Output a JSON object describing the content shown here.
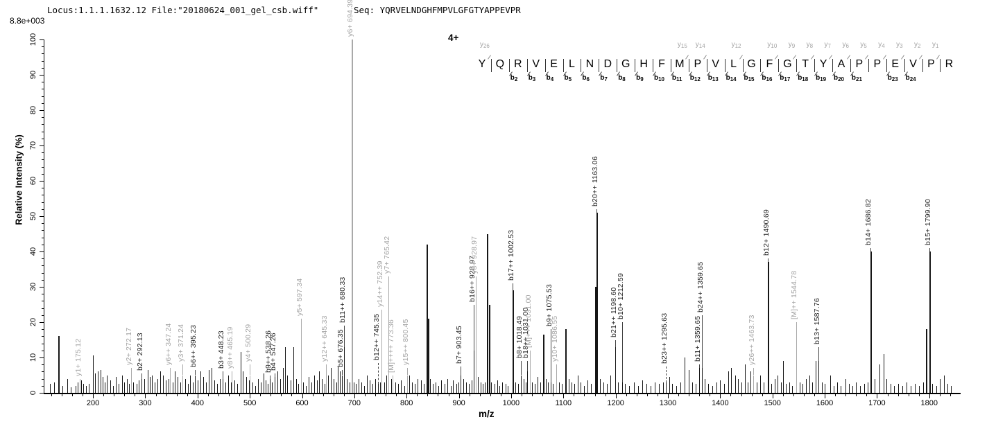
{
  "header": {
    "locus": "Locus:1.1.1.1632.12 File:\"20180624_001_gel_csb.wiff\"",
    "seq": "Seq: YQRVELNDGHFMPVLGFGTYAPPEVPR"
  },
  "y_axis": {
    "label": "Relative  Intensity (%)",
    "max_intensity": "8.8e+003",
    "ticks": [
      0,
      10,
      20,
      30,
      40,
      50,
      60,
      70,
      80,
      90,
      100
    ]
  },
  "x_axis": {
    "label": "m/z",
    "ticks": [
      200,
      300,
      400,
      500,
      600,
      700,
      800,
      900,
      1000,
      1100,
      1200,
      1300,
      1400,
      1500,
      1600,
      1700,
      1800
    ]
  },
  "annotation": {
    "charge": "4+",
    "sequence": "YQRVELNDGHFMPVLGFGTYAPPEVPR",
    "y_ions": [
      {
        "gap": 1,
        "label": "y26"
      },
      {
        "gap": 12,
        "label": "y15"
      },
      {
        "gap": 13,
        "label": "y14"
      },
      {
        "gap": 15,
        "label": "y12"
      },
      {
        "gap": 17,
        "label": "y10"
      },
      {
        "gap": 18,
        "label": "y9"
      },
      {
        "gap": 19,
        "label": "y8"
      },
      {
        "gap": 20,
        "label": "y7"
      },
      {
        "gap": 21,
        "label": "y6"
      },
      {
        "gap": 22,
        "label": "y5"
      },
      {
        "gap": 23,
        "label": "y4"
      },
      {
        "gap": 24,
        "label": "y3"
      },
      {
        "gap": 25,
        "label": "y2"
      },
      {
        "gap": 26,
        "label": "y1"
      }
    ],
    "b_ions": [
      {
        "gap": 2,
        "label": "b2"
      },
      {
        "gap": 3,
        "label": "b3"
      },
      {
        "gap": 4,
        "label": "b4"
      },
      {
        "gap": 5,
        "label": "b5"
      },
      {
        "gap": 6,
        "label": "b6"
      },
      {
        "gap": 7,
        "label": "b7"
      },
      {
        "gap": 8,
        "label": "b8"
      },
      {
        "gap": 9,
        "label": "b9"
      },
      {
        "gap": 10,
        "label": "b10"
      },
      {
        "gap": 11,
        "label": "b11"
      },
      {
        "gap": 12,
        "label": "b12"
      },
      {
        "gap": 13,
        "label": "b13"
      },
      {
        "gap": 14,
        "label": "b14"
      },
      {
        "gap": 15,
        "label": "b15"
      },
      {
        "gap": 16,
        "label": "b16"
      },
      {
        "gap": 17,
        "label": "b17"
      },
      {
        "gap": 18,
        "label": "b18"
      },
      {
        "gap": 19,
        "label": "b19"
      },
      {
        "gap": 20,
        "label": "b20"
      },
      {
        "gap": 21,
        "label": "b21"
      },
      {
        "gap": 23,
        "label": "b23"
      },
      {
        "gap": 24,
        "label": "b24"
      }
    ]
  },
  "chart_data": {
    "type": "bar",
    "subtype": "ms2-stick-spectrum",
    "xlabel": "m/z",
    "ylabel": "Relative  Intensity (%)",
    "x_range": [
      105,
      1860
    ],
    "y_range": [
      0,
      100
    ],
    "base_peak_intensity": "8.8e+003",
    "colors": {
      "y_ion_label": "#a4a4a4",
      "b_ion_label": "#1f1f1f",
      "peak": "#161616"
    },
    "labeled_peaks": [
      {
        "ion": "y1+",
        "mz": "175.12",
        "h": 3,
        "lift": 1,
        "s": "y"
      },
      {
        "ion": "y2+",
        "mz": "272.17",
        "h": 4,
        "lift": 3,
        "s": "y"
      },
      {
        "ion": "b2+",
        "mz": "292.13",
        "h": 4,
        "lift": 1.5,
        "s": "b"
      },
      {
        "ion": "y6++",
        "mz": "347.24",
        "h": 4,
        "lift": 3,
        "s": "y"
      },
      {
        "ion": "y3+",
        "mz": "371.24",
        "h": 5,
        "lift": 3,
        "s": "y"
      },
      {
        "ion": "b6++",
        "mz": "395.23",
        "h": 5,
        "lift": 1.5,
        "s": "b"
      },
      {
        "ion": "b3+",
        "mz": "448.23",
        "h": 4,
        "lift": 2,
        "s": "b"
      },
      {
        "ion": "y8++",
        "mz": "465.19",
        "h": 4,
        "lift": 2,
        "s": "y"
      },
      {
        "ion": "y4+",
        "mz": "500.29",
        "h": 5,
        "lift": 3,
        "s": "y"
      },
      {
        "ion": "b9++",
        "mz": "538.26",
        "h": 4,
        "lift": 1,
        "s": "b"
      },
      {
        "ion": "b4+",
        "mz": "547.26",
        "h": 4.5,
        "lift": 1,
        "s": "b"
      },
      {
        "ion": "y5+",
        "mz": "597.34",
        "h": 2,
        "lift": 19,
        "s": "y"
      },
      {
        "ion": "y12++",
        "mz": "645.33",
        "h": 3,
        "lift": 5,
        "s": "y"
      },
      {
        "ion": "b5+",
        "mz": "676.35",
        "h": 5,
        "lift": 1.5,
        "s": "b"
      },
      {
        "ion": "b11++",
        "mz": "680.33",
        "h": 13,
        "lift": 6,
        "s": "b"
      },
      {
        "ion": "y6+",
        "mz": "694.39",
        "h": 100,
        "lift": -14,
        "s": "y"
      },
      {
        "ion": "b12++",
        "mz": "745.35",
        "h": 2.5,
        "lift": 6,
        "s": "b",
        "dashed": true
      },
      {
        "ion": "y14++",
        "mz": "752.39",
        "h": 6.5,
        "lift": 17,
        "s": "y"
      },
      {
        "ion": "y7+",
        "mz": "765.42",
        "h": 7,
        "lift": 26,
        "s": "y"
      },
      {
        "ion": "[M]++++",
        "mz": "773.36",
        "h": 3,
        "lift": 2,
        "s": "y"
      },
      {
        "ion": "y15++",
        "mz": "800.45",
        "h": 5,
        "lift": 2,
        "s": "y"
      },
      {
        "ion": "b7+",
        "mz": "903.45",
        "h": 5,
        "lift": 2.5,
        "s": "b"
      },
      {
        "ion": "b16++",
        "mz": "928.97",
        "h": 12,
        "lift": 13,
        "s": "b"
      },
      {
        "ion": "y8+",
        "mz": "928.97",
        "x": 932.5,
        "h": 12,
        "lift": 21,
        "s": "y"
      },
      {
        "ion": "b17++",
        "mz": "1002.53",
        "h": 29,
        "lift": 2,
        "s": "b"
      },
      {
        "ion": "b8+",
        "mz": "1018.49",
        "h": 5,
        "lift": 4,
        "s": "b"
      },
      {
        "ion": "b18++",
        "mz": "1031.00",
        "h": 6,
        "lift": 3,
        "s": "b"
      },
      {
        "ion": "[M]+++",
        "mz": "1031.00",
        "x": 1036,
        "h": 6,
        "lift": 6,
        "s": "y"
      },
      {
        "ion": "b9+",
        "mz": "1075.53",
        "h": 3,
        "lift": 15,
        "s": "b"
      },
      {
        "ion": "y10+",
        "mz": "1086.55",
        "h": 3,
        "lift": 5,
        "s": "y"
      },
      {
        "ion": "b20++",
        "mz": "1163.06",
        "h": 51,
        "lift": 1,
        "s": "b"
      },
      {
        "ion": "b21++",
        "mz": "1198.60",
        "h": 13,
        "lift": 2,
        "s": "b"
      },
      {
        "ion": "b10+",
        "mz": "1212.59",
        "h": 3,
        "lift": 17,
        "s": "b"
      },
      {
        "ion": "b23++",
        "mz": "1295.63",
        "h": 3,
        "lift": 4.5,
        "s": "b",
        "dashed": true
      },
      {
        "ion": "b11+",
        "mz": "1359.65",
        "h": 7,
        "lift": 1,
        "s": "b"
      },
      {
        "ion": "b24++",
        "mz": "1359.65",
        "x": 1365,
        "h": 7,
        "lift": 15,
        "s": "b"
      },
      {
        "ion": "y26++",
        "mz": "1463.73",
        "h": 5,
        "lift": 2,
        "s": "y"
      },
      {
        "ion": "b12+",
        "mz": "1490.69",
        "h": 37,
        "lift": 1,
        "s": "b"
      },
      {
        "ion": "[M]++",
        "mz": "1544.78",
        "h": 5,
        "lift": 15,
        "s": "y"
      },
      {
        "ion": "b13+",
        "mz": "1587.76",
        "h": 9,
        "lift": 4,
        "s": "b"
      },
      {
        "ion": "b14+",
        "mz": "1686.82",
        "h": 40,
        "lift": 1,
        "s": "b"
      },
      {
        "ion": "b15+",
        "mz": "1799.90",
        "h": 40,
        "lift": 1,
        "s": "b"
      }
    ],
    "background_peaks": [
      [
        118,
        2.5
      ],
      [
        126,
        3
      ],
      [
        133,
        16
      ],
      [
        142,
        2
      ],
      [
        151,
        4
      ],
      [
        158,
        1.5
      ],
      [
        166,
        2
      ],
      [
        171,
        3
      ],
      [
        177,
        3.5
      ],
      [
        181,
        2.5
      ],
      [
        186,
        2
      ],
      [
        192,
        2.5
      ],
      [
        200,
        10.5
      ],
      [
        204,
        5.5
      ],
      [
        209,
        6
      ],
      [
        214,
        6.5
      ],
      [
        218,
        4.5
      ],
      [
        222,
        3
      ],
      [
        227,
        5
      ],
      [
        233,
        3.5
      ],
      [
        238,
        2
      ],
      [
        243,
        4.5
      ],
      [
        249,
        2.5
      ],
      [
        255,
        5
      ],
      [
        259,
        3
      ],
      [
        265,
        4
      ],
      [
        269,
        2.5
      ],
      [
        277,
        3
      ],
      [
        283,
        2.5
      ],
      [
        288,
        3.5
      ],
      [
        298,
        4
      ],
      [
        305,
        6.5
      ],
      [
        309,
        4.5
      ],
      [
        313,
        5
      ],
      [
        318,
        3
      ],
      [
        323,
        4
      ],
      [
        329,
        6
      ],
      [
        334,
        5
      ],
      [
        339,
        3.5
      ],
      [
        344,
        4
      ],
      [
        352,
        3
      ],
      [
        357,
        6
      ],
      [
        362,
        4.5
      ],
      [
        367,
        3
      ],
      [
        376,
        4
      ],
      [
        381,
        2.5
      ],
      [
        386,
        5
      ],
      [
        391,
        3
      ],
      [
        400,
        3.5
      ],
      [
        405,
        6
      ],
      [
        411,
        4.5
      ],
      [
        416,
        3
      ],
      [
        421,
        6.5
      ],
      [
        427,
        7
      ],
      [
        432,
        3.5
      ],
      [
        438,
        2.5
      ],
      [
        443,
        4
      ],
      [
        453,
        3
      ],
      [
        458,
        5
      ],
      [
        464,
        3
      ],
      [
        470,
        3.5
      ],
      [
        476,
        2.5
      ],
      [
        483,
        11.5
      ],
      [
        487,
        6
      ],
      [
        493,
        4.5
      ],
      [
        498,
        3.5
      ],
      [
        505,
        3
      ],
      [
        510,
        2
      ],
      [
        516,
        4
      ],
      [
        521,
        3
      ],
      [
        526,
        5.5
      ],
      [
        530,
        3.5
      ],
      [
        534,
        2.5
      ],
      [
        542,
        3
      ],
      [
        553,
        6
      ],
      [
        558,
        4
      ],
      [
        563,
        7
      ],
      [
        567,
        13
      ],
      [
        572,
        5
      ],
      [
        578,
        3.5
      ],
      [
        583,
        13
      ],
      [
        588,
        4
      ],
      [
        592,
        2.5
      ],
      [
        602,
        3
      ],
      [
        607,
        2
      ],
      [
        612,
        4.5
      ],
      [
        618,
        3
      ],
      [
        623,
        5
      ],
      [
        628,
        3.5
      ],
      [
        633,
        6
      ],
      [
        638,
        4
      ],
      [
        643,
        2.5
      ],
      [
        650,
        5
      ],
      [
        655,
        7
      ],
      [
        660,
        4
      ],
      [
        665,
        3
      ],
      [
        668,
        7.5
      ],
      [
        672,
        6
      ],
      [
        686,
        4
      ],
      [
        691,
        3
      ],
      [
        699,
        3
      ],
      [
        703,
        2.5
      ],
      [
        708,
        4
      ],
      [
        714,
        3
      ],
      [
        719,
        2
      ],
      [
        724,
        5
      ],
      [
        729,
        3.5
      ],
      [
        734,
        2.5
      ],
      [
        740,
        4
      ],
      [
        749,
        3
      ],
      [
        757,
        3
      ],
      [
        761,
        5
      ],
      [
        770,
        4
      ],
      [
        779,
        3
      ],
      [
        784,
        2.5
      ],
      [
        789,
        3.5
      ],
      [
        795,
        2
      ],
      [
        805,
        5
      ],
      [
        810,
        3
      ],
      [
        815,
        2.5
      ],
      [
        821,
        4
      ],
      [
        827,
        3.5
      ],
      [
        833,
        2.5
      ],
      [
        838,
        42
      ],
      [
        841,
        21
      ],
      [
        845,
        4
      ],
      [
        850,
        2.5
      ],
      [
        856,
        3
      ],
      [
        861,
        2
      ],
      [
        866,
        3.5
      ],
      [
        872,
        2.5
      ],
      [
        878,
        4
      ],
      [
        884,
        2
      ],
      [
        889,
        3.5
      ],
      [
        895,
        2.5
      ],
      [
        899,
        3
      ],
      [
        909,
        4
      ],
      [
        914,
        3
      ],
      [
        919,
        2.5
      ],
      [
        924,
        3.5
      ],
      [
        936,
        4.5
      ],
      [
        941,
        3
      ],
      [
        945,
        2.5
      ],
      [
        949,
        3
      ],
      [
        954,
        45
      ],
      [
        957,
        25
      ],
      [
        962,
        3
      ],
      [
        968,
        2.5
      ],
      [
        973,
        3.5
      ],
      [
        978,
        2
      ],
      [
        983,
        3
      ],
      [
        989,
        2.5
      ],
      [
        994,
        2
      ],
      [
        1008,
        3
      ],
      [
        1013,
        2.5
      ],
      [
        1024,
        4
      ],
      [
        1028,
        3
      ],
      [
        1040,
        3
      ],
      [
        1045,
        2.5
      ],
      [
        1051,
        4.5
      ],
      [
        1056,
        3
      ],
      [
        1061,
        16.5
      ],
      [
        1066,
        4
      ],
      [
        1070,
        3
      ],
      [
        1080,
        2.5
      ],
      [
        1092,
        3
      ],
      [
        1097,
        2.5
      ],
      [
        1104,
        18
      ],
      [
        1110,
        4
      ],
      [
        1115,
        3
      ],
      [
        1121,
        2.5
      ],
      [
        1127,
        5
      ],
      [
        1133,
        3
      ],
      [
        1140,
        2
      ],
      [
        1146,
        3.5
      ],
      [
        1152,
        2.5
      ],
      [
        1160,
        30
      ],
      [
        1170,
        4
      ],
      [
        1176,
        3
      ],
      [
        1183,
        2.5
      ],
      [
        1190,
        5
      ],
      [
        1205,
        3
      ],
      [
        1218,
        2.5
      ],
      [
        1226,
        2
      ],
      [
        1235,
        3
      ],
      [
        1243,
        2
      ],
      [
        1251,
        3.5
      ],
      [
        1259,
        2.5
      ],
      [
        1267,
        2
      ],
      [
        1275,
        3
      ],
      [
        1283,
        2.5
      ],
      [
        1290,
        3
      ],
      [
        1302,
        4.5
      ],
      [
        1308,
        2.5
      ],
      [
        1316,
        2
      ],
      [
        1324,
        3
      ],
      [
        1332,
        10
      ],
      [
        1340,
        6.5
      ],
      [
        1346,
        3
      ],
      [
        1353,
        2.5
      ],
      [
        1370,
        4
      ],
      [
        1377,
        2.5
      ],
      [
        1385,
        2
      ],
      [
        1393,
        3
      ],
      [
        1400,
        3.5
      ],
      [
        1408,
        2.5
      ],
      [
        1415,
        6
      ],
      [
        1421,
        7
      ],
      [
        1428,
        5
      ],
      [
        1434,
        4
      ],
      [
        1441,
        3
      ],
      [
        1447,
        8
      ],
      [
        1453,
        3
      ],
      [
        1458,
        6
      ],
      [
        1470,
        3
      ],
      [
        1476,
        5
      ],
      [
        1483,
        3
      ],
      [
        1497,
        2.5
      ],
      [
        1504,
        4
      ],
      [
        1510,
        5
      ],
      [
        1516,
        3
      ],
      [
        1520,
        9
      ],
      [
        1526,
        2.5
      ],
      [
        1532,
        3
      ],
      [
        1538,
        2
      ],
      [
        1552,
        3
      ],
      [
        1558,
        2.5
      ],
      [
        1564,
        4
      ],
      [
        1570,
        5
      ],
      [
        1576,
        3
      ],
      [
        1582,
        9
      ],
      [
        1594,
        3
      ],
      [
        1600,
        2.5
      ],
      [
        1610,
        5
      ],
      [
        1617,
        2
      ],
      [
        1624,
        3
      ],
      [
        1631,
        2
      ],
      [
        1640,
        4
      ],
      [
        1646,
        2.5
      ],
      [
        1653,
        2
      ],
      [
        1660,
        3
      ],
      [
        1668,
        2
      ],
      [
        1675,
        2.5
      ],
      [
        1682,
        3
      ],
      [
        1695,
        4
      ],
      [
        1705,
        8
      ],
      [
        1712,
        11
      ],
      [
        1718,
        4
      ],
      [
        1726,
        2.5
      ],
      [
        1733,
        2
      ],
      [
        1741,
        2.5
      ],
      [
        1749,
        2
      ],
      [
        1757,
        3
      ],
      [
        1764,
        2
      ],
      [
        1772,
        2.5
      ],
      [
        1780,
        2
      ],
      [
        1788,
        3
      ],
      [
        1794,
        18
      ],
      [
        1806,
        2.5
      ],
      [
        1813,
        2
      ],
      [
        1820,
        4
      ],
      [
        1828,
        5
      ],
      [
        1835,
        2.5
      ],
      [
        1842,
        2
      ]
    ]
  }
}
